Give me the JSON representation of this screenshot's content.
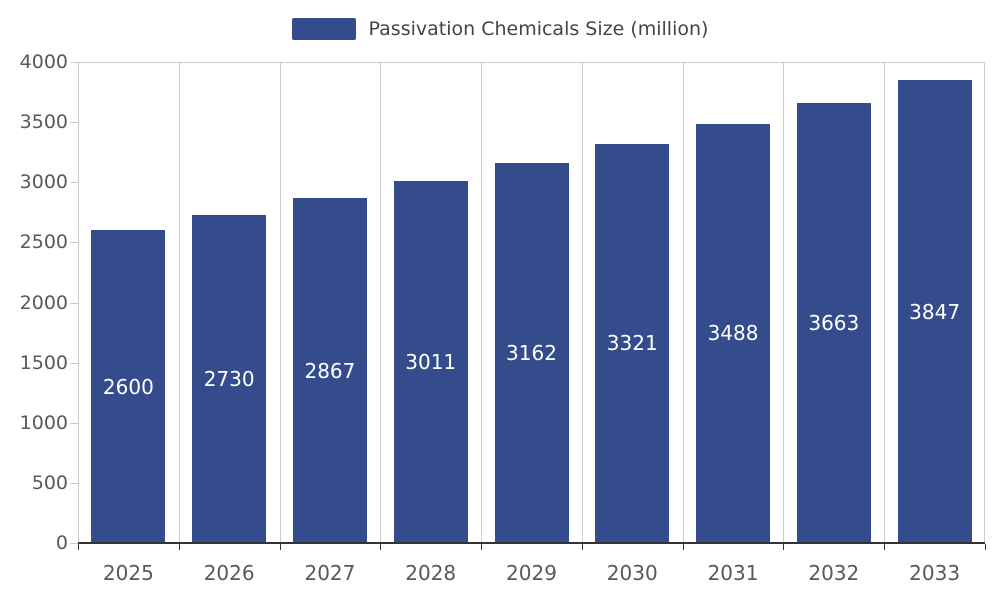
{
  "chart_data": {
    "type": "bar",
    "title": "Passivation Chemicals Size (million)",
    "legend": "Passivation Chemicals Size (million)",
    "categories": [
      "2025",
      "2026",
      "2027",
      "2028",
      "2029",
      "2030",
      "2031",
      "2032",
      "2033"
    ],
    "values": [
      2600,
      2730,
      2867,
      3011,
      3162,
      3321,
      3488,
      3663,
      3847
    ],
    "xlabel": "",
    "ylabel": "",
    "ylim": [
      0,
      4000
    ],
    "ytick_step": 500,
    "ytick_labels": [
      "0",
      "500",
      "1000",
      "1500",
      "2000",
      "2500",
      "3000",
      "3500",
      "4000"
    ],
    "grid": true,
    "legend_position": "top",
    "colors": {
      "bar": "#344c8c",
      "value_label": "#ffffff",
      "axis_text": "#595959",
      "legend_text": "#444444",
      "grid_line": "#cccccc",
      "axis_line": "#333333",
      "background": "#ffffff"
    }
  }
}
